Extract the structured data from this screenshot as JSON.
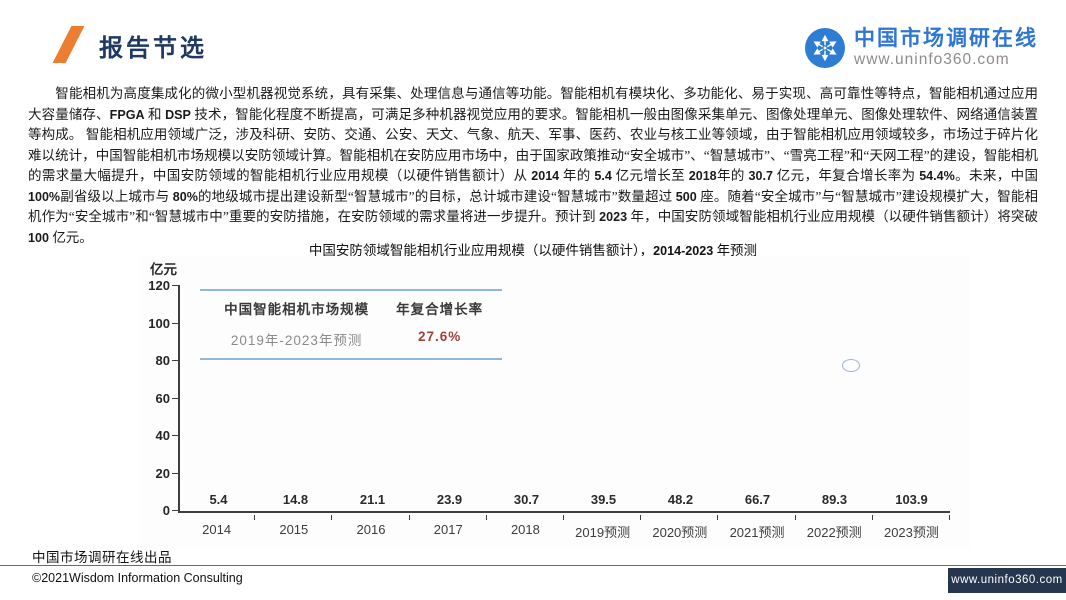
{
  "header": {
    "title": "报告节选",
    "logo_name": "中国市场调研在线",
    "logo_url": "www.uninfo360.com",
    "brand_blue": "#2E75D6",
    "accent_orange": "#ED7D31",
    "title_navy": "#1F3864"
  },
  "body": {
    "paragraph_segments": [
      {
        "t": "　　智能相机为高度集成化的微小型机器视觉系统，具有采集、处理信息与通信等功能。智能相机有模块化、多功能化、易于实现、高可靠性等特点，智能相机通过应用大容量储存、",
        "b": false
      },
      {
        "t": "FPGA",
        "b": true
      },
      {
        "t": " 和 ",
        "b": false
      },
      {
        "t": "DSP",
        "b": true
      },
      {
        "t": " 技术，智能化程度不断提高，可满足多种机器视觉应用的要求。智能相机一般由图像采集单元、图像处理单元、图像处理软件、网络通信装置等构成。 智能相机应用领域广泛，涉及科研、安防、交通、公安、天文、气象、航天、军事、医药、农业与核工业等领域，由于智能相机应用领域较多，市场过于碎片化难以统计，中国智能相机市场规模以安防领域计算。智能相机在安防应用市场中，由于国家政策推动“安全城市”、“智慧城市”、“雪亮工程”和“天网工程”的建设，智能相机的需求量大幅提升，中国安防领域的智能相机行业应用规模（以硬件销售额计）从 ",
        "b": false
      },
      {
        "t": "2014",
        "b": true
      },
      {
        "t": " 年的 ",
        "b": false
      },
      {
        "t": "5.4",
        "b": true
      },
      {
        "t": " 亿元增长至 ",
        "b": false
      },
      {
        "t": "2018",
        "b": true
      },
      {
        "t": "年的 ",
        "b": false
      },
      {
        "t": "30.7",
        "b": true
      },
      {
        "t": " 亿元，年复合增长率为 ",
        "b": false
      },
      {
        "t": "54.4%",
        "b": true
      },
      {
        "t": "。未来，中国 ",
        "b": false
      },
      {
        "t": "100%",
        "b": true
      },
      {
        "t": "副省级以上城市与 ",
        "b": false
      },
      {
        "t": "80%",
        "b": true
      },
      {
        "t": "的地级城市提出建设新型“智慧城市”的目标，总计城市建设“智慧城市”数量超过 ",
        "b": false
      },
      {
        "t": "500",
        "b": true
      },
      {
        "t": " 座。随着“安全城市”与“智慧城市”建设规模扩大，智能相机作为“安全城市”和“智慧城市中”重要的安防措施，在安防领域的需求量将进一步提升。预计到 ",
        "b": false
      },
      {
        "t": "2023",
        "b": true
      },
      {
        "t": " 年，中国安防领域智能相机行业应用规模（以硬件销售额计）将突破 ",
        "b": false
      },
      {
        "t": "100",
        "b": true
      },
      {
        "t": " 亿元。",
        "b": false
      }
    ]
  },
  "chart": {
    "title_segments": [
      {
        "t": "中国安防领域智能相机行业应用规模（以硬件销售额计），",
        "b": false
      },
      {
        "t": "2014-2023",
        "b": true
      },
      {
        "t": " 年预测",
        "b": false
      }
    ],
    "unit": "亿元",
    "legend": {
      "col1_header": "中国智能相机市场规模",
      "col2_header": "年复合增长率",
      "col1_value": "2019年-2023年预测",
      "col2_value": "27.6%"
    }
  },
  "chart_data": {
    "type": "bar",
    "title": "中国安防领域智能相机行业应用规模（以硬件销售额计），2014-2023年预测",
    "xlabel": "",
    "ylabel": "亿元",
    "ylim": [
      0,
      120
    ],
    "yticks": [
      0,
      20,
      40,
      60,
      80,
      100,
      120
    ],
    "categories": [
      "2014",
      "2015",
      "2016",
      "2017",
      "2018",
      "2019预测",
      "2020预测",
      "2021预测",
      "2022预测",
      "2023预测"
    ],
    "values": [
      5.4,
      14.8,
      21.1,
      23.9,
      30.7,
      39.5,
      48.2,
      66.7,
      89.3,
      103.9
    ],
    "actual_count": 5,
    "actual_color": "#31618F",
    "forecast_color": "#D9D9D9",
    "grid": false,
    "legend_position": "top-left-inside",
    "cagr_2019_2023": "27.6%"
  },
  "footer": {
    "produced_by": "中国市场调研在线出品",
    "copyright": "©2021Wisdom Information Consulting",
    "site": "www.uninfo360.com"
  }
}
